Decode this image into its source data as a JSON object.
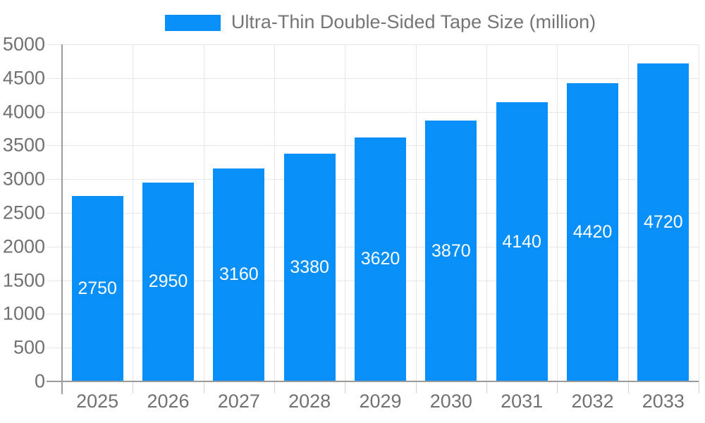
{
  "chart_data": {
    "type": "bar",
    "title": "Ultra-Thin Double-Sided Tape Size (million)",
    "categories": [
      "2025",
      "2026",
      "2027",
      "2028",
      "2029",
      "2030",
      "2031",
      "2032",
      "2033"
    ],
    "series": [
      {
        "name": "Ultra-Thin Double-Sided Tape Size (million)",
        "values": [
          2750,
          2950,
          3160,
          3380,
          3620,
          3870,
          4140,
          4420,
          4720
        ]
      }
    ],
    "xlabel": "",
    "ylabel": "",
    "ylim": [
      0,
      5000
    ],
    "yticks": [
      0,
      500,
      1000,
      1500,
      2000,
      2500,
      3000,
      3500,
      4000,
      4500,
      5000
    ],
    "grid": true,
    "legend_position": "top-center",
    "value_labels_shown": true,
    "colors": {
      "bar": "#0890F8",
      "value_label": "#FFFFFF",
      "legend_text": "#757575",
      "axis_label": "#717171",
      "grid_line": "#E6E6E6",
      "axis_line": "#9A9A9A",
      "tick_mark": "#D2D2D2",
      "background": "#FFFFFF"
    }
  }
}
